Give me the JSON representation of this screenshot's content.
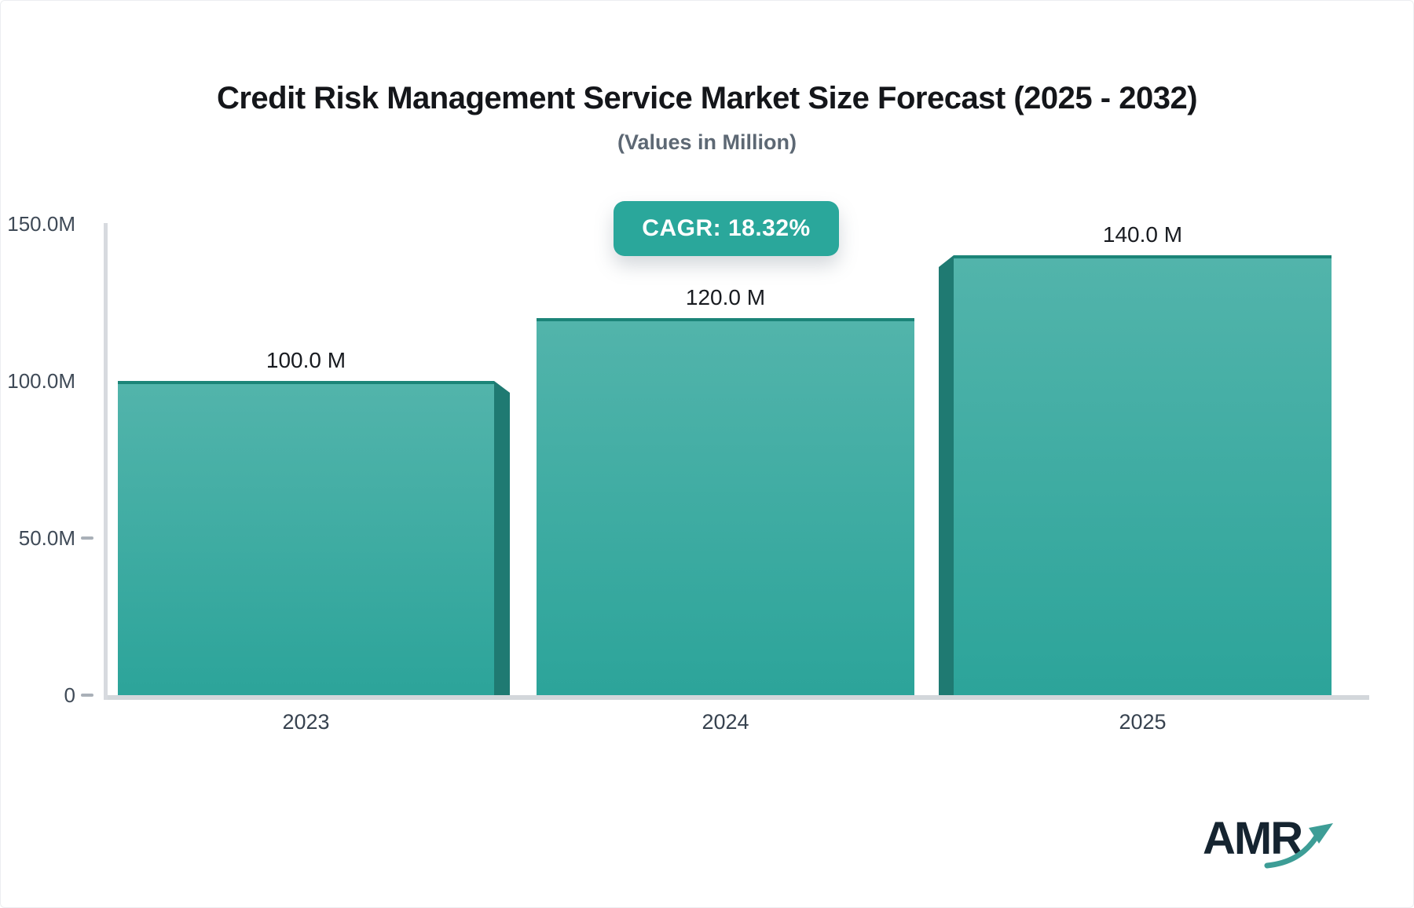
{
  "header": {
    "cagr_label": "CAGR: 18.32%"
  },
  "chart_data": {
    "type": "bar",
    "title": "Credit Risk Management Service Market Size Forecast (2025 - 2032)",
    "subtitle": "(Values in Million)",
    "unit": "Million",
    "cagr_percent": 18.32,
    "categories": [
      "2023",
      "2024",
      "2025"
    ],
    "values": [
      100.0,
      120.0,
      140.0
    ],
    "bar_labels": [
      "100.0 M",
      "120.0 M",
      "140.0 M"
    ],
    "yticks": [
      "150.0M",
      "100.0M",
      "50.0M",
      "0"
    ],
    "ylim": [
      0,
      150
    ],
    "xlabel": "",
    "ylabel": "",
    "grid": false,
    "legend": false,
    "colors": {
      "bar_gradient_top": "#52B4AB",
      "bar_gradient_bottom": "#2CA49A",
      "bar_top_edge": "#1B8478",
      "bar_side_face": "#1F7A72",
      "badge_teal": "#2AA79B",
      "axis_line": "#D5D9DE",
      "title_text": "#14161A",
      "subtitle_text": "#5D6874",
      "axis_text": "#3F4A57"
    }
  },
  "logo": {
    "text": "AMR"
  }
}
